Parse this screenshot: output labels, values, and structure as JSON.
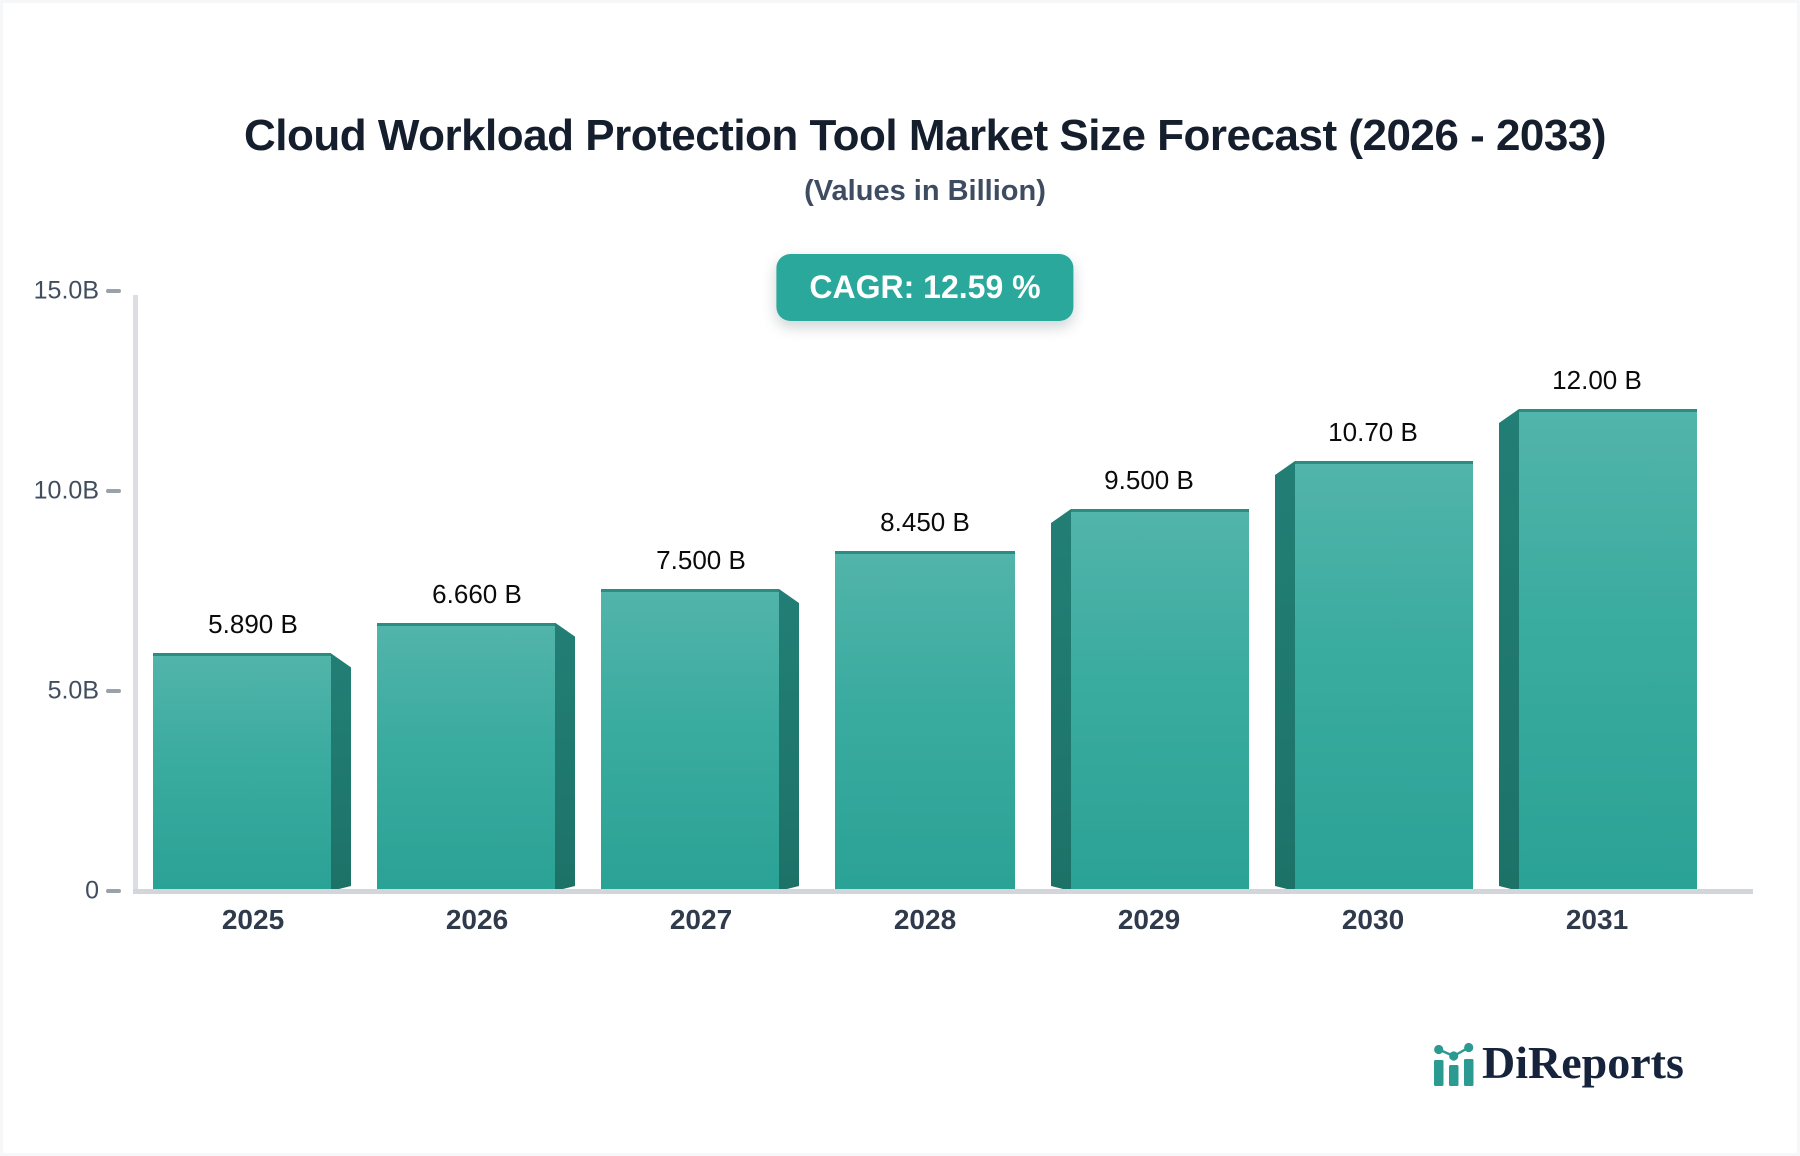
{
  "header": {
    "title": "Cloud Workload Protection Tool Market Size Forecast (2026 - 2033)",
    "subtitle": "(Values in Billion)"
  },
  "badge": {
    "label": "CAGR: 12.59 %"
  },
  "brand": {
    "name": "DiReports"
  },
  "chart_data": {
    "type": "bar",
    "title": "Cloud Workload Protection Tool Market Size Forecast (2026 - 2033)",
    "subtitle": "(Values in Billion)",
    "cagr_label": "CAGR: 12.59 %",
    "categories": [
      "2025",
      "2026",
      "2027",
      "2028",
      "2029",
      "2030",
      "2031"
    ],
    "values": [
      5.89,
      6.66,
      7.5,
      8.45,
      9.5,
      10.7,
      12.0
    ],
    "bar_labels": [
      "5.890 B",
      "6.660 B",
      "7.500 B",
      "8.450 B",
      "9.500 B",
      "10.70 B",
      "12.00 B"
    ],
    "y_ticks": [
      {
        "label": "15.0B",
        "value": 15
      },
      {
        "label": "10.0B",
        "value": 10
      },
      {
        "label": "5.0B",
        "value": 5
      },
      {
        "label": "0",
        "value": 0
      }
    ],
    "ylim": [
      0,
      15
    ],
    "grid": false,
    "legend": false,
    "colors": {
      "bar_top": "#52b4aa",
      "bar_bottom": "#2aa295",
      "bar_side": "#1f7a70",
      "bar_top_edge": "#2d8c82",
      "badge_bg": "#2aa89b",
      "axis_line": "#d2d5da",
      "tick_text": "#424e5f",
      "category_text": "#2f3b4d",
      "value_text": "#0b0b0b",
      "title_text": "#151e2d",
      "brand_teal": "#2b9b92",
      "brand_navy": "#16233c"
    }
  }
}
